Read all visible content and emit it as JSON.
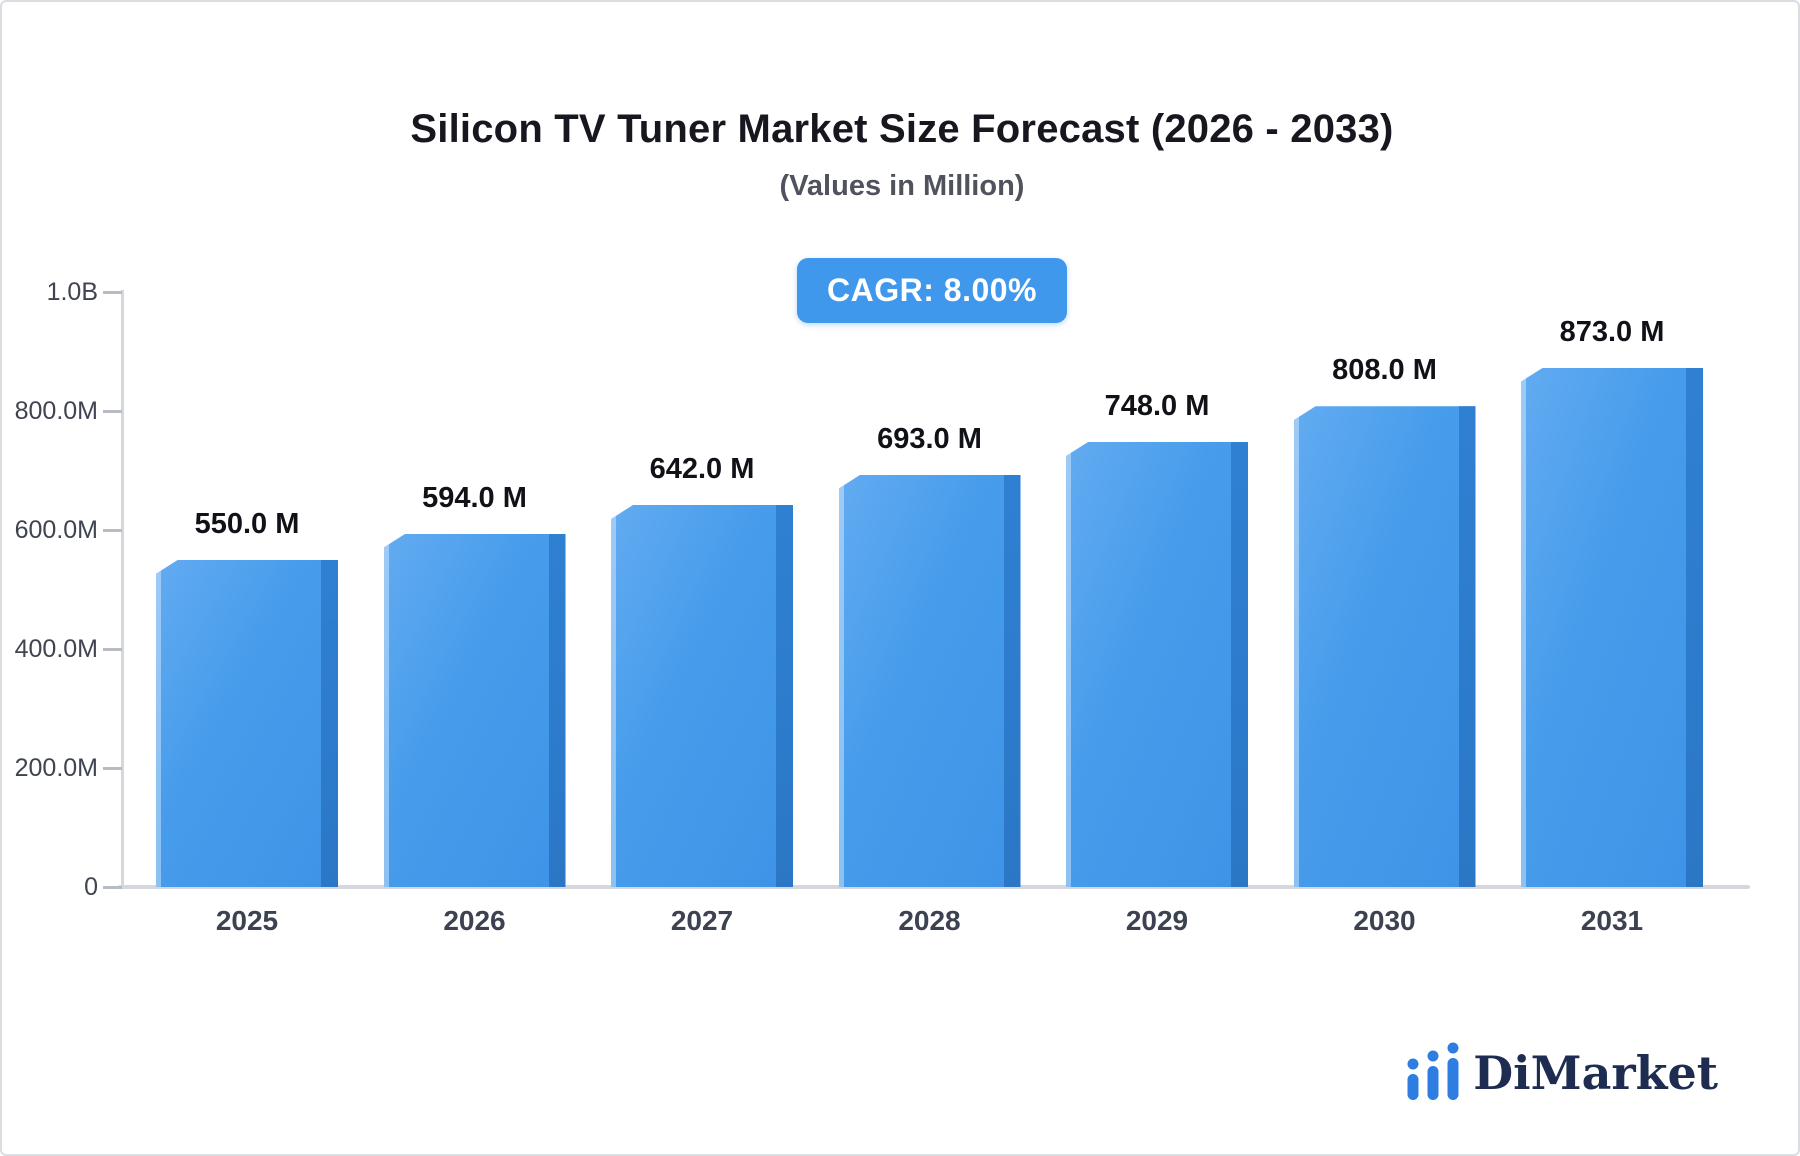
{
  "chart_data": {
    "type": "bar",
    "title": "Silicon TV Tuner Market Size Forecast (2026 - 2033)",
    "subtitle": "(Values in Million)",
    "badge": "CAGR: 8.00%",
    "categories": [
      "2025",
      "2026",
      "2027",
      "2028",
      "2029",
      "2030",
      "2031"
    ],
    "values": [
      550,
      594,
      642,
      693,
      748,
      808,
      873
    ],
    "value_labels": [
      "550.0 M",
      "594.0 M",
      "642.0 M",
      "693.0 M",
      "748.0 M",
      "808.0 M",
      "873.0 M"
    ],
    "unit": "Million",
    "ylim": [
      0,
      1000
    ],
    "yticks": [
      {
        "value": 1000,
        "label": "1.0B"
      },
      {
        "value": 800,
        "label": "800.0M"
      },
      {
        "value": 600,
        "label": "600.0M"
      },
      {
        "value": 400,
        "label": "400.0M"
      },
      {
        "value": 200,
        "label": "200.0M"
      },
      {
        "value": 0,
        "label": "0"
      }
    ],
    "legend": "none",
    "grid": "off",
    "colors": {
      "bar_face": "#3e97e9",
      "bar_side": "#2c7bc9",
      "badge_bg": "#3f98ec",
      "axis": "#d4d7dc",
      "title_text": "#17181f",
      "subtitle_text": "#50535e"
    }
  },
  "branding": {
    "logo_text": "DiMarket",
    "logo_icon": "bar-chart-icon",
    "logo_color": "#2e7ee2"
  }
}
